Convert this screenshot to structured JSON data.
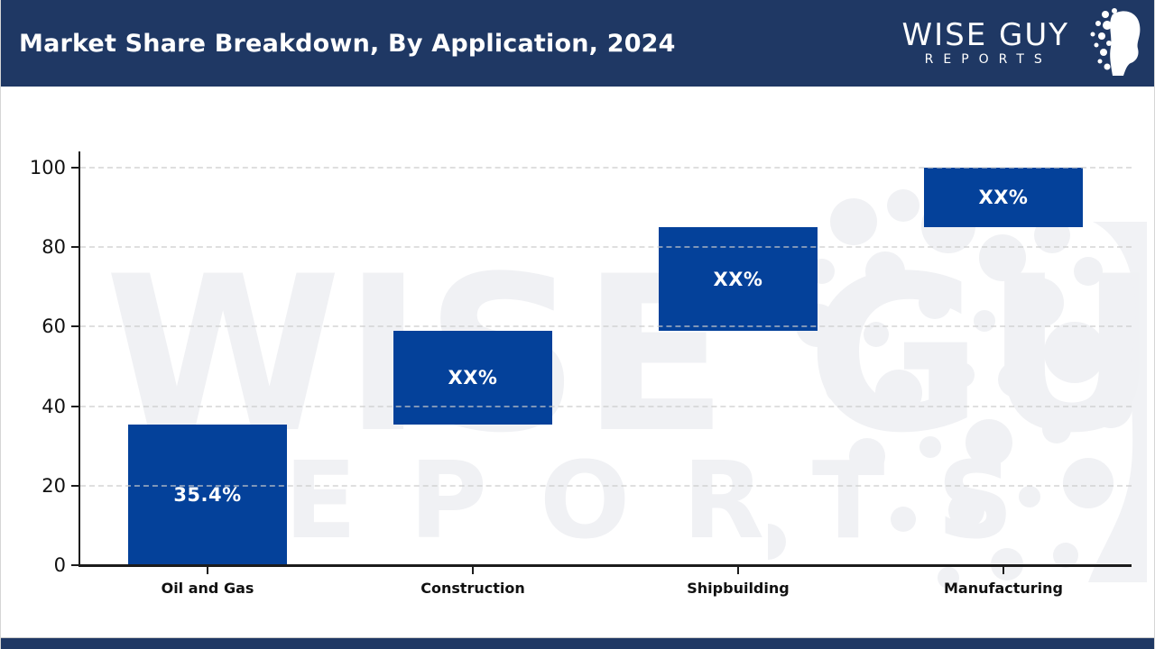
{
  "header": {
    "title": "Market Share Breakdown, By Application, 2024"
  },
  "logo": {
    "line1": "WISE GUY",
    "line2": "REPORTS"
  },
  "watermark": {
    "line1": "WISE GUY",
    "line2": "REPORTS"
  },
  "colors": {
    "header_navy": "#1f3864",
    "bar_blue": "#04419a",
    "gridline_gray": "#cbcbcb",
    "axis_black": "#1c1c1c",
    "watermark_gray": "#f0f1f4"
  },
  "chart_data": {
    "type": "bar",
    "variant": "waterfall",
    "title": "Market Share Breakdown, By Application, 2024",
    "xlabel": "",
    "ylabel": "",
    "categories": [
      "Oil and Gas",
      "Construction",
      "Shipbuilding",
      "Manufacturing"
    ],
    "segments": [
      {
        "category": "Oil and Gas",
        "start": 0,
        "end": 35.4,
        "value": 35.4,
        "label": "35.4%"
      },
      {
        "category": "Construction",
        "start": 35.4,
        "end": 58.9,
        "value": 23.5,
        "label": "XX%"
      },
      {
        "category": "Shipbuilding",
        "start": 58.9,
        "end": 85.0,
        "value": 26.1,
        "label": "XX%"
      },
      {
        "category": "Manufacturing",
        "start": 85.0,
        "end": 100.0,
        "value": 15.0,
        "label": "XX%"
      }
    ],
    "yticks": [
      0,
      20,
      40,
      60,
      80,
      100
    ],
    "ylim": [
      0,
      104
    ],
    "grid": true,
    "grid_style": "dashed",
    "legend": false,
    "bar_color": "#04419a",
    "bar_label_color": "#ffffff"
  }
}
